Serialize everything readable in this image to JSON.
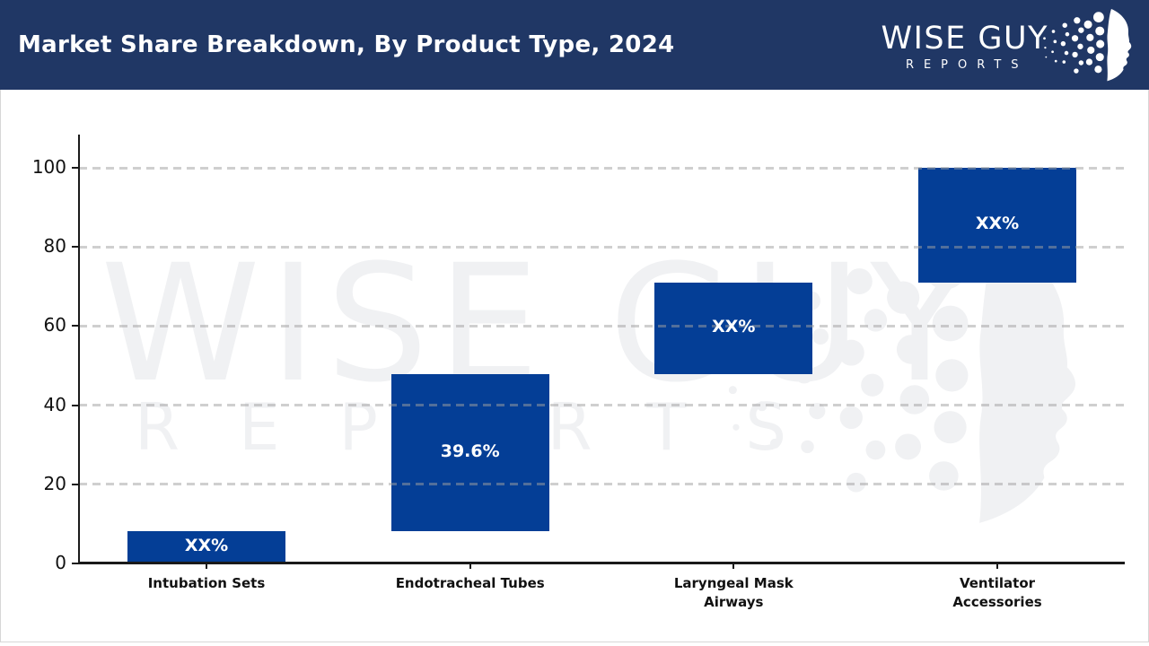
{
  "header": {
    "title": "Market Share Breakdown, By Product Type, 2024",
    "logo": {
      "line1": "WISE GUY",
      "line2": "REPORTS"
    }
  },
  "watermark": {
    "line1": "WISE GUY",
    "line2": "REPORTS"
  },
  "chart_data": {
    "type": "bar",
    "subtype": "waterfall",
    "title": "Market Share Breakdown, By Product Type, 2024",
    "categories": [
      "Intubation Sets",
      "Endotracheal Tubes",
      "Laryngeal Mask Airways",
      "Ventilator Accessories"
    ],
    "categories_lines": [
      [
        "Intubation Sets"
      ],
      [
        "Endotracheal Tubes"
      ],
      [
        "Laryngeal Mask",
        "Airways"
      ],
      [
        "Ventilator",
        "Accessories"
      ]
    ],
    "segments": [
      {
        "category": "Intubation Sets",
        "start": 0,
        "end": 8.2,
        "value": 8.2,
        "label": "XX%"
      },
      {
        "category": "Endotracheal Tubes",
        "start": 8.2,
        "end": 47.8,
        "value": 39.6,
        "label": "39.6%"
      },
      {
        "category": "Laryngeal Mask Airways",
        "start": 47.8,
        "end": 70.9,
        "value": 23.1,
        "label": "XX%"
      },
      {
        "category": "Ventilator Accessories",
        "start": 70.9,
        "end": 100,
        "value": 29.1,
        "label": "XX%"
      }
    ],
    "bar_labels": [
      "XX%",
      "39.6%",
      "XX%",
      "XX%"
    ],
    "xlabel": "",
    "ylabel": "",
    "ylim": [
      0,
      100
    ],
    "yticks": [
      0,
      20,
      40,
      60,
      80,
      100
    ],
    "grid": "dashed-horizontal",
    "legend": "none",
    "bar_color": "#043e96",
    "bar_label_color": "#ffffff"
  },
  "colors": {
    "header_bg": "#203765",
    "bar": "#043e96",
    "grid": "#d9d9d9",
    "axis": "#1a1a1a",
    "watermark": "#f0f1f3",
    "title_text": "#ffffff"
  }
}
